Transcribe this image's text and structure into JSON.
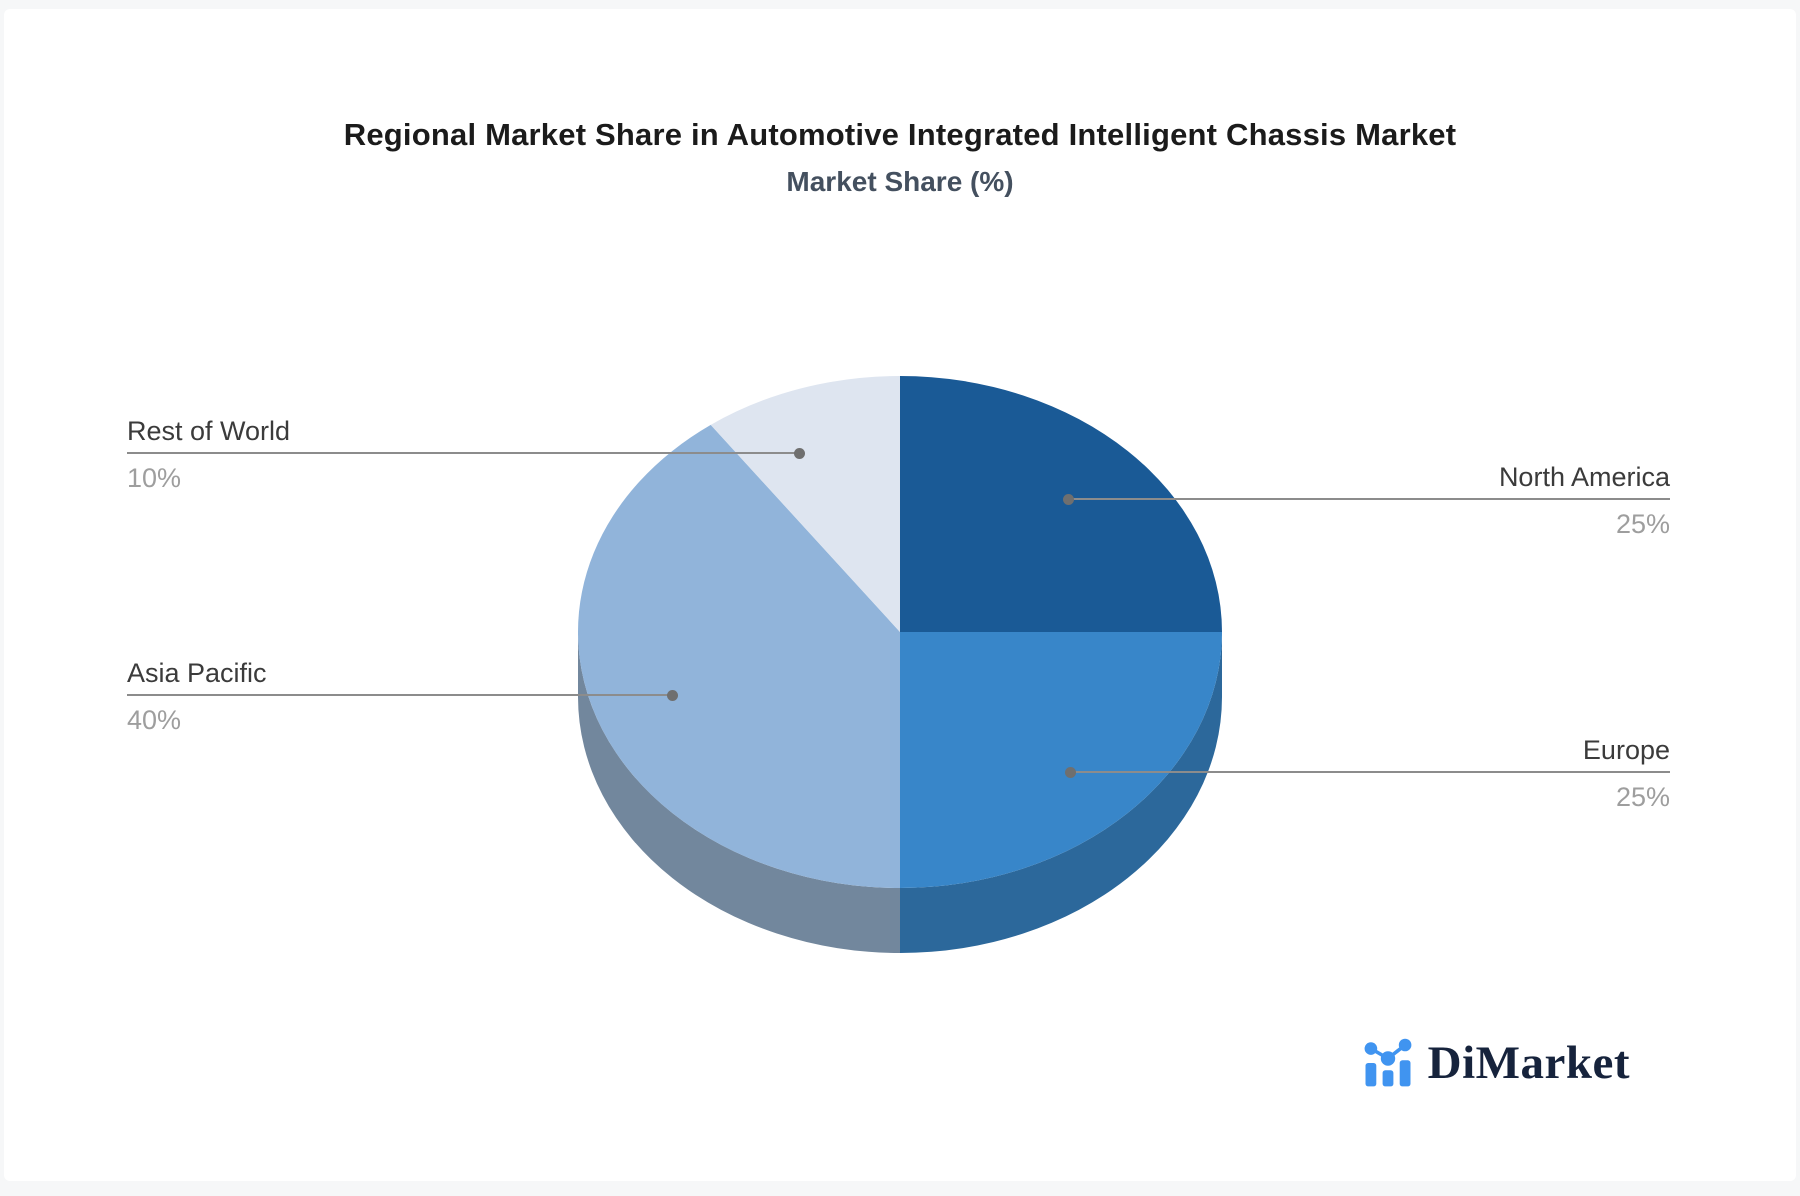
{
  "header": {
    "title": "Regional Market Share in Automotive Integrated Intelligent Chassis Market",
    "subtitle": "Market Share (%)"
  },
  "chart_data": {
    "type": "pie",
    "effect": "3d",
    "title": "Regional Market Share in Automotive Integrated Intelligent Chassis Market",
    "subtitle": "Market Share (%)",
    "unit": "%",
    "start_angle_deg": 0,
    "direction": "clockwise",
    "labels": [
      "North America",
      "Europe",
      "Asia Pacific",
      "Rest of World"
    ],
    "values": [
      25,
      25,
      40,
      10
    ],
    "colors": [
      "#1A5A96",
      "#3886C9",
      "#91B4DA",
      "#DEE5F0"
    ],
    "side_colors": [
      "#14466F",
      "#2C689B",
      "#72879D",
      "#B9C5D6"
    ],
    "legend_position": "callout-labels"
  },
  "callouts": [
    {
      "label": "Rest of World",
      "value": "10%",
      "side": "left"
    },
    {
      "label": "Asia Pacific",
      "value": "40%",
      "side": "left"
    },
    {
      "label": "North America",
      "value": "25%",
      "side": "right"
    },
    {
      "label": "Europe",
      "value": "25%",
      "side": "right"
    }
  ],
  "branding": {
    "name": "DiMarket",
    "icon": "bar-line-chart-icon",
    "icon_color": "#4094F0",
    "text_color": "#16233C"
  }
}
